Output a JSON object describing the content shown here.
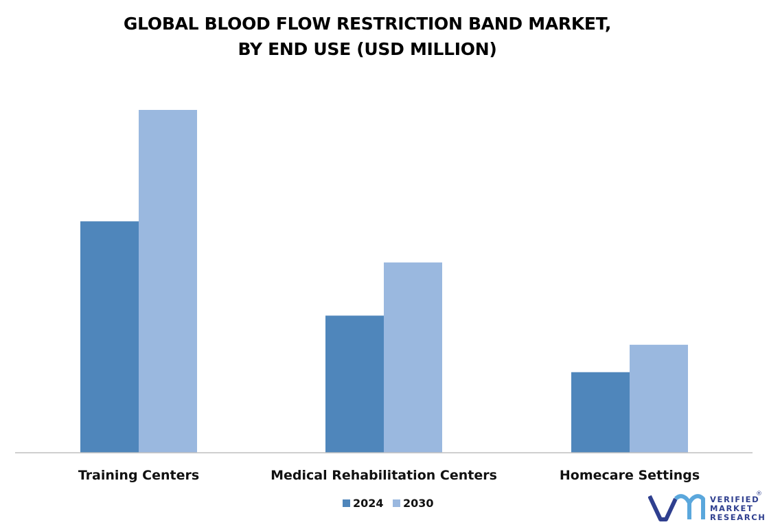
{
  "chart_data": {
    "type": "bar",
    "title_lines": [
      "GLOBAL BLOOD FLOW RESTRICTION BAND MARKET,",
      "BY END USE (USD MILLION)"
    ],
    "categories": [
      "Training Centers",
      "Medical Rehabilitation Centers",
      "Homecare Settings"
    ],
    "series": [
      {
        "name": "2024",
        "values": [
          67.5,
          40,
          23.5
        ],
        "color": "#4f86bb"
      },
      {
        "name": "2030",
        "values": [
          100,
          55.5,
          31.5
        ],
        "color": "#9ab8df"
      }
    ],
    "ylim": [
      0,
      100
    ],
    "grid": false,
    "legend_position": "bottom-center"
  },
  "branding": {
    "logo_lines": [
      "VERIFIED",
      "MARKET",
      "RESEARCH"
    ],
    "registered_mark": "®"
  }
}
